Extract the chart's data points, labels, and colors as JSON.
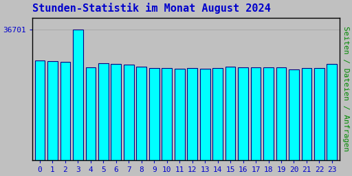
{
  "title": "Stunden-Statistik im Monat August 2024",
  "ylabel": "Seiten / Dateien / Anfragen",
  "categories": [
    0,
    1,
    2,
    3,
    4,
    5,
    6,
    7,
    8,
    9,
    10,
    11,
    12,
    13,
    14,
    15,
    16,
    17,
    18,
    19,
    20,
    21,
    22,
    23
  ],
  "values": [
    28000,
    27800,
    27500,
    36701,
    26000,
    27200,
    27000,
    26800,
    26200,
    25800,
    25900,
    25700,
    25900,
    25700,
    25800,
    26200,
    26100,
    26000,
    26000,
    26000,
    25400,
    25800,
    25800,
    27000
  ],
  "bar_color": "#00FFFF",
  "bar_edge_color": "#000080",
  "bar_edge_width": 0.8,
  "title_color": "#0000CC",
  "title_fontsize": 11,
  "ylabel_color": "#008800",
  "ylabel_fontsize": 8,
  "tick_label_color": "#0000CC",
  "tick_fontsize": 8,
  "ytick_label": "36701",
  "background_color": "#C0C0C0",
  "plot_bg_color": "#C0C0C0",
  "outer_bg_color": "#C0C0C0",
  "ylim": [
    0,
    40000
  ],
  "yticks": [
    36701
  ],
  "border_color": "#000000"
}
